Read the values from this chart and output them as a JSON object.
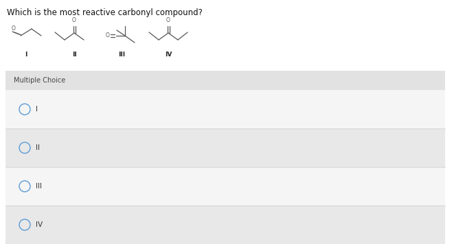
{
  "question": "Which is the most reactive carbonyl compound?",
  "question_fontsize": 8.5,
  "section_label": "Multiple Choice",
  "section_label_fontsize": 7,
  "options": [
    "I",
    "II",
    "III",
    "IV"
  ],
  "option_fontsize": 7.5,
  "bg_color": "#ffffff",
  "section_bg_color": "#efefef",
  "row_bg_light": "#f5f5f5",
  "row_bg_dark": "#e8e8e8",
  "circle_color": "#5b9bd5",
  "circle_lw": 1.0,
  "section_header_color": "#e2e2e2",
  "divider_color": "#cccccc",
  "compound_labels": [
    "I",
    "II",
    "III",
    "IV"
  ],
  "fig_width": 6.58,
  "fig_height": 3.55
}
